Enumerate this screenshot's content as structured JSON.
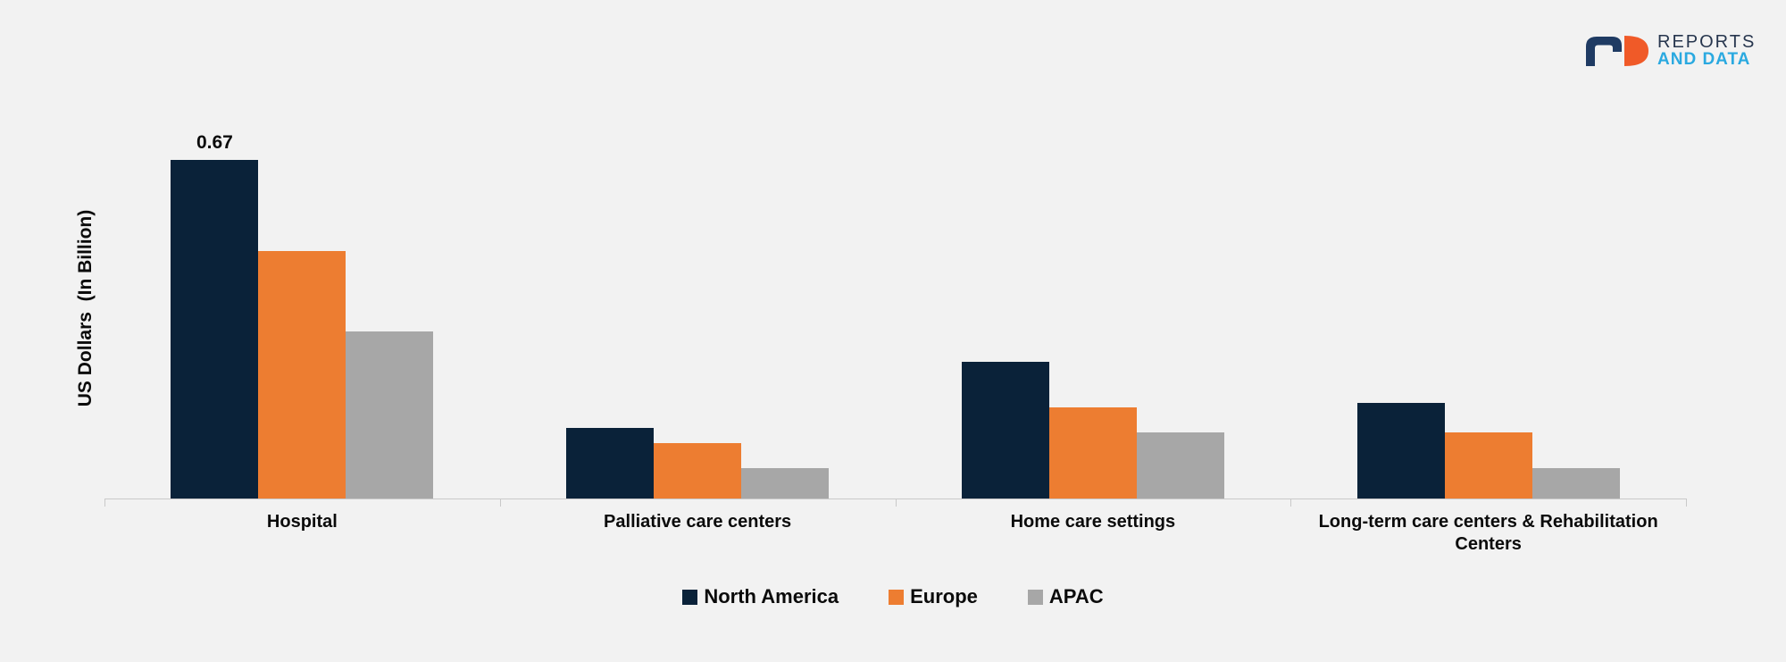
{
  "logo": {
    "line1": "REPORTS",
    "line2": "AND DATA",
    "mark_colors": {
      "r": "#1f3b63",
      "d": "#f05a28"
    },
    "text_colors": {
      "line1": "#27364e",
      "line2": "#2aa9e0"
    }
  },
  "chart_data": {
    "type": "bar",
    "title": "",
    "xlabel": "",
    "ylabel": "US Dollars  (In Billion)",
    "categories": [
      "Hospital",
      "Palliative care centers",
      "Home care settings",
      "Long-term care centers & Rehabilitation Centers"
    ],
    "series": [
      {
        "name": "North America",
        "color": "#0a2239",
        "values": [
          0.67,
          0.14,
          0.27,
          0.19
        ]
      },
      {
        "name": "Europe",
        "color": "#ed7d31",
        "values": [
          0.49,
          0.11,
          0.18,
          0.13
        ]
      },
      {
        "name": "APAC",
        "color": "#a7a7a7",
        "values": [
          0.33,
          0.06,
          0.13,
          0.06
        ]
      }
    ],
    "data_labels": [
      {
        "series": 0,
        "category": 0,
        "text": "0.67"
      }
    ],
    "ylim": [
      0,
      0.75
    ],
    "grid": false,
    "y_tick_labels": "none",
    "legend_position": "bottom",
    "background": "#f2f2f2",
    "axis_color": "#c9c9c9"
  }
}
